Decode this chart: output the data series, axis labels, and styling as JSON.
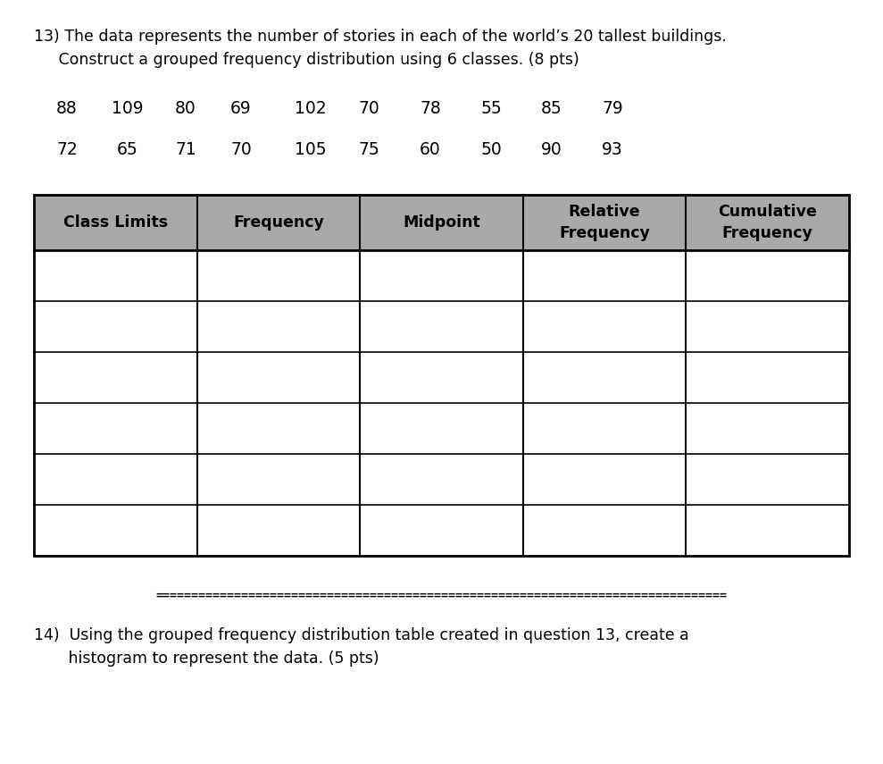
{
  "title_line1": "13) The data represents the number of stories in each of the world’s 20 tallest buildings.",
  "title_line2": "     Construct a grouped frequency distribution using 6 classes. (8 pts)",
  "data_row1": [
    "88",
    "109",
    "80",
    "69",
    "102",
    "70",
    "78",
    "55",
    "85",
    "79"
  ],
  "data_row2": [
    "72",
    "65",
    "71",
    "70",
    "105",
    "75",
    "60",
    "50",
    "90",
    "93"
  ],
  "col_headers": [
    "Class Limits",
    "Frequency",
    "Midpoint",
    "Relative\nFrequency",
    "Cumulative\nFrequency"
  ],
  "num_data_rows": 6,
  "header_bg": "#a9a9a9",
  "separator_line": "================================================================================",
  "footer_line1": "14)  Using the grouped frequency distribution table created in question 13, create a",
  "footer_line2": "       histogram to represent the data. (5 pts)",
  "bg_color": "#ffffff",
  "text_color": "#000000",
  "border_color": "#000000",
  "font_size_title": 12.5,
  "font_size_data": 13.5,
  "font_size_table": 12.5,
  "font_size_footer": 12.5,
  "font_size_sep": 9.5
}
